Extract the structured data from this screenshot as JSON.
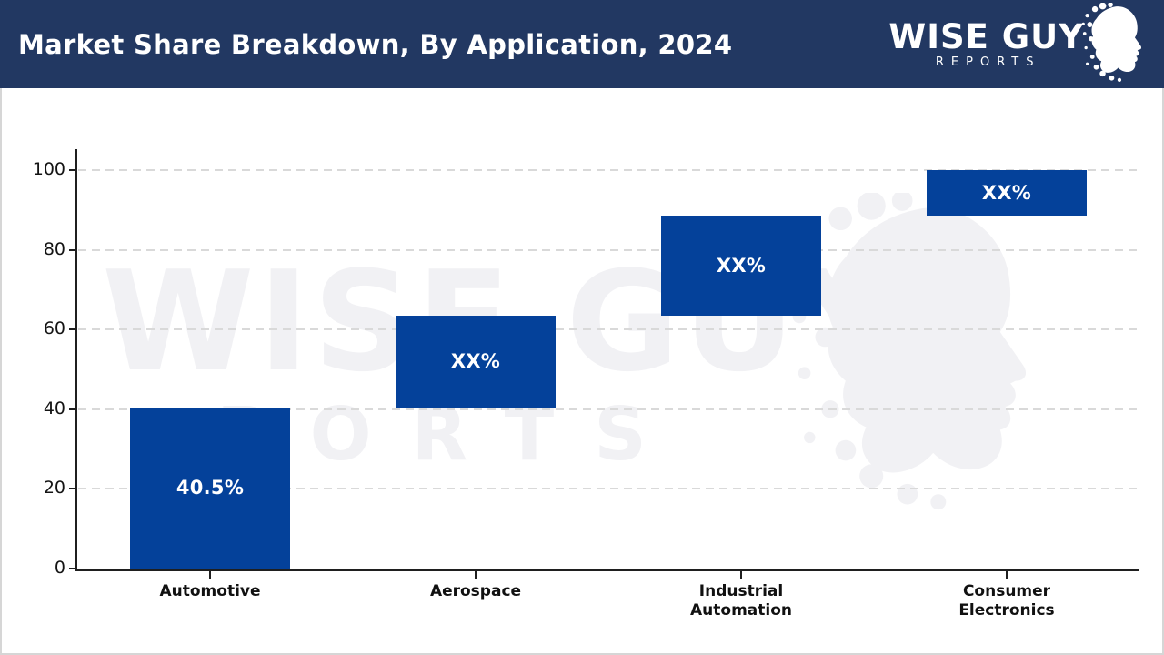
{
  "header": {
    "title": "Market Share Breakdown, By Application, 2024",
    "logo": {
      "line1": "WISE GUY",
      "line2": "REPORTS"
    }
  },
  "watermark": {
    "line1": "WISE GUY",
    "line2": "PORTS"
  },
  "colors": {
    "header_bg": "#223862",
    "bar_blue": "#04419A",
    "bar_label": "#ffffff",
    "axis": "#1f1f1f",
    "gridline": "#d9d9d9",
    "watermark": "#f1f1f4"
  },
  "chart_data": {
    "type": "bar",
    "subtype": "waterfall",
    "title": "Market Share Breakdown, By Application, 2024",
    "categories": [
      {
        "lines": [
          "Automotive"
        ]
      },
      {
        "lines": [
          "Aerospace"
        ]
      },
      {
        "lines": [
          "Industrial",
          "Automation"
        ]
      },
      {
        "lines": [
          "Consumer",
          "Electronics"
        ]
      }
    ],
    "segments": [
      {
        "category": "Automotive",
        "start": 0,
        "end": 40.5,
        "label": "40.5%"
      },
      {
        "category": "Aerospace",
        "start": 40.5,
        "end": 63.5,
        "label": "XX%"
      },
      {
        "category": "Industrial Automation",
        "start": 63.5,
        "end": 88.6,
        "label": "XX%"
      },
      {
        "category": "Consumer Electronics",
        "start": 88.6,
        "end": 100,
        "label": "XX%"
      }
    ],
    "ylim": [
      0,
      100
    ],
    "yticks": [
      0,
      20,
      40,
      60,
      80,
      100
    ],
    "grid": "horizontal-dashed",
    "legend": "none"
  }
}
